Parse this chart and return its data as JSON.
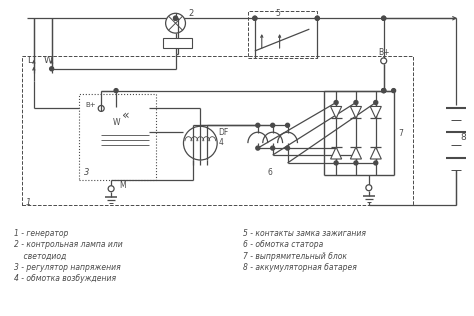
{
  "bg_color": "#ffffff",
  "lc": "#4a4a4a",
  "figsize": [
    4.74,
    3.16
  ],
  "dpi": 100,
  "legend_left": [
    "1 - генератор",
    "2 - контрольная лампа или",
    "    светодиод",
    "3 - регулятор напряжения",
    "4 - обмотка возбуждения"
  ],
  "legend_right": [
    "5 - контакты замка зажигания",
    "6 - обмотка статора",
    "7 - выпрямительный блок",
    "8 - аккумуляторная батарея"
  ]
}
